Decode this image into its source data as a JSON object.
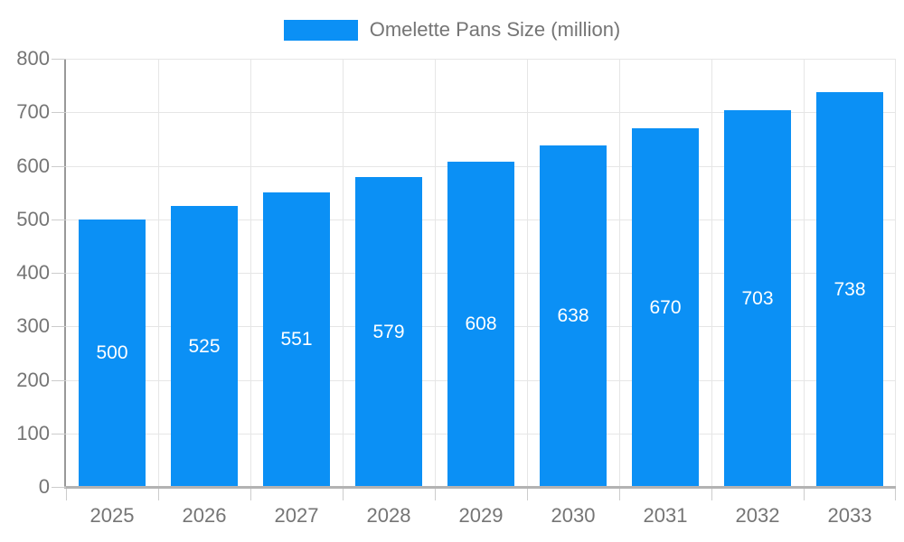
{
  "legend": {
    "label": "Omelette Pans Size (million)"
  },
  "chart_data": {
    "type": "bar",
    "title": "Omelette Pans Size (million)",
    "categories": [
      "2025",
      "2026",
      "2027",
      "2028",
      "2029",
      "2030",
      "2031",
      "2032",
      "2033"
    ],
    "series": [
      {
        "name": "Omelette Pans Size (million)",
        "values": [
          500,
          525,
          551,
          579,
          608,
          638,
          670,
          703,
          738
        ]
      }
    ],
    "values": [
      500,
      525,
      551,
      579,
      608,
      638,
      670,
      703,
      738
    ],
    "xlabel": "",
    "ylabel": "",
    "ylim": [
      0,
      800
    ],
    "y_ticks": [
      0,
      100,
      200,
      300,
      400,
      500,
      600,
      700,
      800
    ],
    "grid": true,
    "legend_position": "top",
    "value_label_position": "inside-center",
    "colors": {
      "bar": "#0b90f5",
      "axis_text": "#757575",
      "value_text": "#ffffff",
      "gridline": "#e6e6e6",
      "tick": "#cccccc",
      "y_axis_line": "#999999",
      "x_axis_line": "#b3b3b3",
      "background": "#ffffff"
    }
  }
}
